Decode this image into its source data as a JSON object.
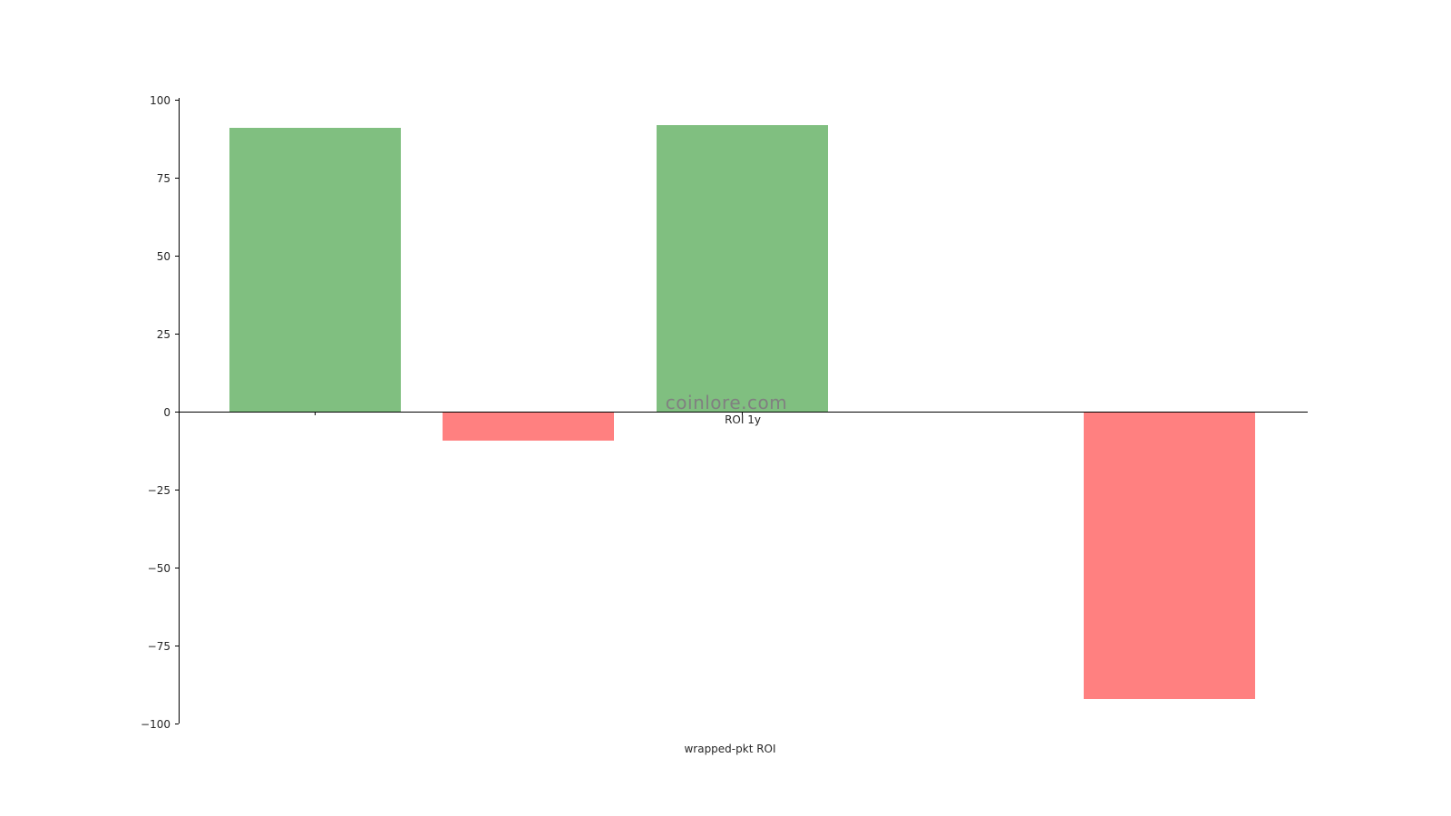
{
  "watermark": {
    "text": "coinlore.com",
    "color": "#808080"
  },
  "chart_data": {
    "type": "bar",
    "title": "",
    "xlabel": "wrapped-pkt ROI",
    "ylabel": "",
    "categories": [
      "",
      "",
      "ROI 1y",
      "",
      ""
    ],
    "values": [
      91,
      -9,
      92,
      0,
      -92
    ],
    "x_tick_label": "ROI 1y",
    "x_tick_slots": [
      0,
      2
    ],
    "y_ticks": [
      100,
      75,
      50,
      25,
      0,
      -25,
      -50,
      -75,
      -100
    ],
    "ylim": [
      -100,
      100
    ],
    "grid": false,
    "legend": "none",
    "bar_colors": {
      "positive": "#80bf80",
      "negative": "#ff8080"
    },
    "axis_color": "#000000",
    "text_color": "#262626"
  }
}
